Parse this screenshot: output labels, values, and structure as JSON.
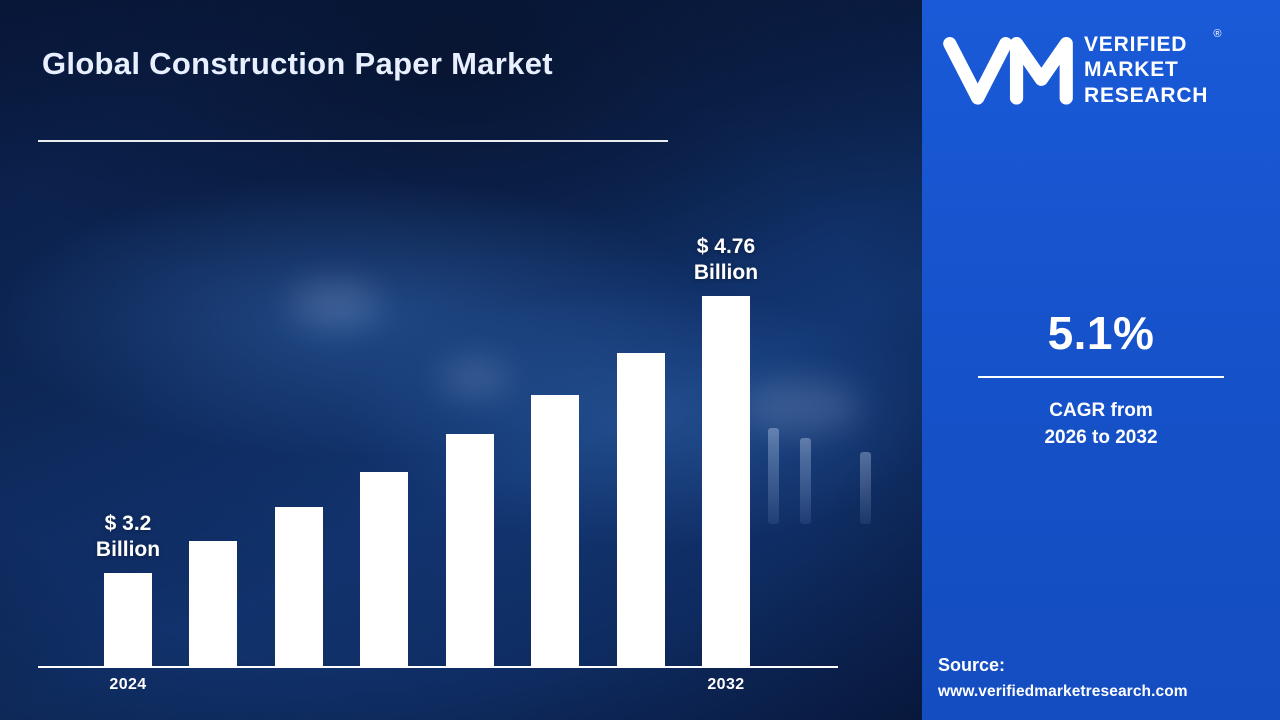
{
  "header": {
    "title": "Global Construction Paper Market"
  },
  "branding": {
    "logo_lines": [
      "VERIFIED",
      "MARKET",
      "RESEARCH"
    ],
    "registered_mark": "®"
  },
  "stats": {
    "cagr_value": "5.1%",
    "cagr_caption_line1": "CAGR from",
    "cagr_caption_line2": "2026 to 2032"
  },
  "source": {
    "label": "Source:",
    "url": "www.verifiedmarketresearch.com"
  },
  "chart_data": {
    "type": "bar",
    "title": "Global Construction Paper Market",
    "unit": "USD Billion",
    "categories": [
      "2024",
      "",
      "",
      "",
      "",
      "",
      "",
      "2032"
    ],
    "values": [
      3.2,
      3.38,
      3.57,
      3.77,
      3.98,
      4.2,
      4.44,
      4.76
    ],
    "ylim": [
      3.0,
      5.0
    ],
    "bar_color": "#ffffff",
    "grid": false,
    "legend": false,
    "annotations": [
      {
        "bar_index": 0,
        "lines": [
          "$ 3.2",
          "Billion"
        ]
      },
      {
        "bar_index": 7,
        "lines": [
          "$ 4.76",
          "Billion"
        ]
      }
    ],
    "x_axis_labels_shown": [
      "2024",
      "2032"
    ]
  },
  "colors": {
    "sidebar_blue": "#1551c8",
    "background_navy": "#0a1c44",
    "bar_white": "#ffffff",
    "title_text": "#e8efff"
  }
}
